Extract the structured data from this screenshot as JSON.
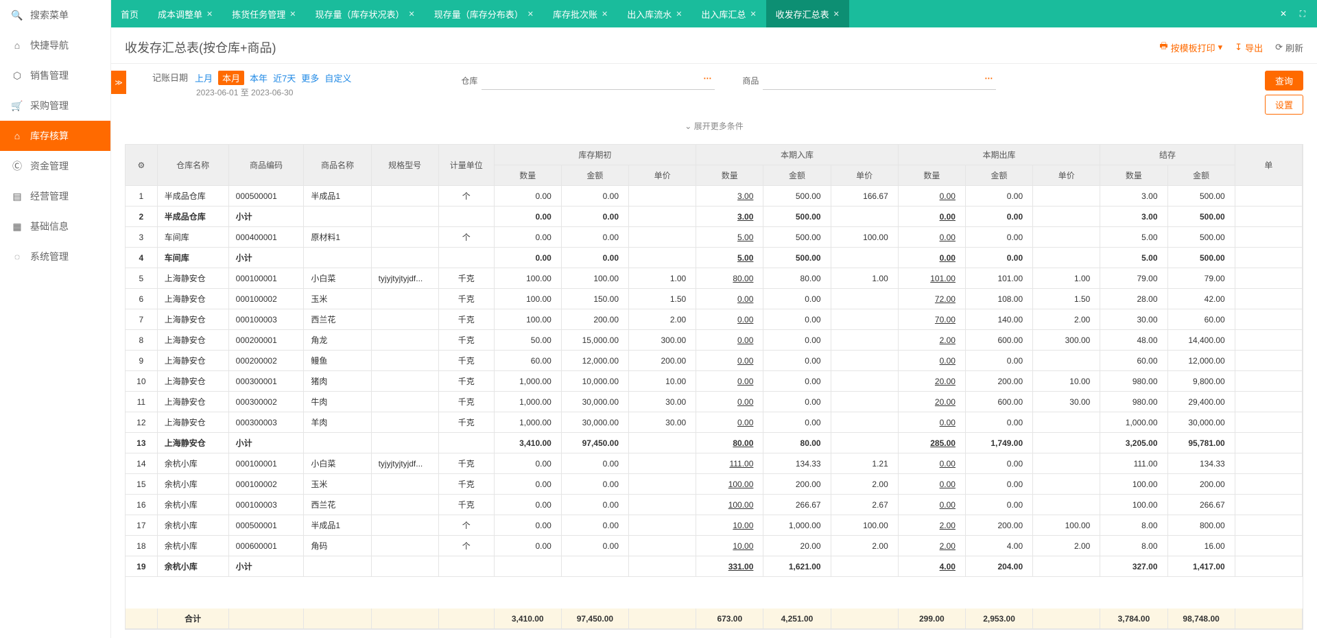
{
  "colors": {
    "accent": "#ff6a00",
    "tabbar": "#1abc9c",
    "tabactive": "#0d8f73",
    "footer_bg": "#fdf6e3"
  },
  "sidebar": [
    {
      "icon": "search",
      "label": "搜索菜单"
    },
    {
      "icon": "home",
      "label": "快捷导航"
    },
    {
      "icon": "sale",
      "label": "销售管理"
    },
    {
      "icon": "purchase",
      "label": "采购管理"
    },
    {
      "icon": "stock",
      "label": "库存核算",
      "active": true
    },
    {
      "icon": "money",
      "label": "资金管理"
    },
    {
      "icon": "biz",
      "label": "经营管理"
    },
    {
      "icon": "base",
      "label": "基础信息"
    },
    {
      "icon": "sys",
      "label": "系统管理"
    }
  ],
  "tabs": [
    {
      "label": "首页",
      "closable": false
    },
    {
      "label": "成本调整单",
      "closable": true
    },
    {
      "label": "拣货任务管理",
      "closable": true
    },
    {
      "label": "现存量（库存状况表）",
      "closable": true
    },
    {
      "label": "现存量（库存分布表）",
      "closable": true
    },
    {
      "label": "库存批次账",
      "closable": true
    },
    {
      "label": "出入库流水",
      "closable": true
    },
    {
      "label": "出入库汇总",
      "closable": true
    },
    {
      "label": "收发存汇总表",
      "closable": true,
      "active": true
    }
  ],
  "page": {
    "title": "收发存汇总表(按仓库+商品)",
    "actions": {
      "print": "按模板打印",
      "export": "导出",
      "refresh": "刷新"
    }
  },
  "filter": {
    "date_label": "记账日期",
    "ranges": [
      "上月",
      "本月",
      "本年",
      "近7天",
      "更多",
      "自定义"
    ],
    "range_active": 1,
    "date_text": "2023-06-01 至 2023-06-30",
    "warehouse_label": "仓库",
    "product_label": "商品",
    "query": "查询",
    "settings": "设置",
    "expand": "展开更多条件"
  },
  "grid": {
    "groups": [
      "库存期初",
      "本期入库",
      "本期出库",
      "结存"
    ],
    "sub_cols": [
      "数量",
      "金额",
      "单价"
    ],
    "fixed_cols": [
      "",
      "仓库名称",
      "商品编码",
      "商品名称",
      "规格型号",
      "计量单位"
    ],
    "last_col": "单",
    "rows": [
      {
        "i": 1,
        "wh": "半成品仓库",
        "code": "000500001",
        "name": "半成品1",
        "spec": "",
        "unit": "个",
        "q0": "0.00",
        "a0": "0.00",
        "p0": "",
        "qi": "3.00",
        "ai": "500.00",
        "pi": "166.67",
        "qo": "0.00",
        "ao": "0.00",
        "po": "",
        "qb": "3.00",
        "ab": "500.00"
      },
      {
        "i": 2,
        "wh": "半成品仓库",
        "code": "小计",
        "sub": true,
        "q0": "0.00",
        "a0": "0.00",
        "qi": "3.00",
        "ai": "500.00",
        "qo": "0.00",
        "ao": "0.00",
        "qb": "3.00",
        "ab": "500.00"
      },
      {
        "i": 3,
        "wh": "车间库",
        "code": "000400001",
        "name": "原材料1",
        "unit": "个",
        "q0": "0.00",
        "a0": "0.00",
        "qi": "5.00",
        "ai": "500.00",
        "pi": "100.00",
        "qo": "0.00",
        "ao": "0.00",
        "qb": "5.00",
        "ab": "500.00"
      },
      {
        "i": 4,
        "wh": "车间库",
        "code": "小计",
        "sub": true,
        "q0": "0.00",
        "a0": "0.00",
        "qi": "5.00",
        "ai": "500.00",
        "qo": "0.00",
        "ao": "0.00",
        "qb": "5.00",
        "ab": "500.00"
      },
      {
        "i": 5,
        "wh": "上海静安仓",
        "code": "000100001",
        "name": "小白菜",
        "spec": "tyjyjtyjtyjdf...",
        "unit": "千克",
        "q0": "100.00",
        "a0": "100.00",
        "p0": "1.00",
        "qi": "80.00",
        "ai": "80.00",
        "pi": "1.00",
        "qo": "101.00",
        "ao": "101.00",
        "po": "1.00",
        "qb": "79.00",
        "ab": "79.00"
      },
      {
        "i": 6,
        "wh": "上海静安仓",
        "code": "000100002",
        "name": "玉米",
        "unit": "千克",
        "q0": "100.00",
        "a0": "150.00",
        "p0": "1.50",
        "qi": "0.00",
        "ai": "0.00",
        "qo": "72.00",
        "ao": "108.00",
        "po": "1.50",
        "qb": "28.00",
        "ab": "42.00"
      },
      {
        "i": 7,
        "wh": "上海静安仓",
        "code": "000100003",
        "name": "西兰花",
        "unit": "千克",
        "q0": "100.00",
        "a0": "200.00",
        "p0": "2.00",
        "qi": "0.00",
        "ai": "0.00",
        "qo": "70.00",
        "ao": "140.00",
        "po": "2.00",
        "qb": "30.00",
        "ab": "60.00"
      },
      {
        "i": 8,
        "wh": "上海静安仓",
        "code": "000200001",
        "name": "角龙",
        "unit": "千克",
        "q0": "50.00",
        "a0": "15,000.00",
        "p0": "300.00",
        "qi": "0.00",
        "ai": "0.00",
        "qo": "2.00",
        "ao": "600.00",
        "po": "300.00",
        "qb": "48.00",
        "ab": "14,400.00"
      },
      {
        "i": 9,
        "wh": "上海静安仓",
        "code": "000200002",
        "name": "鳗鱼",
        "unit": "千克",
        "q0": "60.00",
        "a0": "12,000.00",
        "p0": "200.00",
        "qi": "0.00",
        "ai": "0.00",
        "qo": "0.00",
        "ao": "0.00",
        "qb": "60.00",
        "ab": "12,000.00"
      },
      {
        "i": 10,
        "wh": "上海静安仓",
        "code": "000300001",
        "name": "猪肉",
        "unit": "千克",
        "q0": "1,000.00",
        "a0": "10,000.00",
        "p0": "10.00",
        "qi": "0.00",
        "ai": "0.00",
        "qo": "20.00",
        "ao": "200.00",
        "po": "10.00",
        "qb": "980.00",
        "ab": "9,800.00"
      },
      {
        "i": 11,
        "wh": "上海静安仓",
        "code": "000300002",
        "name": "牛肉",
        "unit": "千克",
        "q0": "1,000.00",
        "a0": "30,000.00",
        "p0": "30.00",
        "qi": "0.00",
        "ai": "0.00",
        "qo": "20.00",
        "ao": "600.00",
        "po": "30.00",
        "qb": "980.00",
        "ab": "29,400.00"
      },
      {
        "i": 12,
        "wh": "上海静安仓",
        "code": "000300003",
        "name": "羊肉",
        "unit": "千克",
        "q0": "1,000.00",
        "a0": "30,000.00",
        "p0": "30.00",
        "qi": "0.00",
        "ai": "0.00",
        "qo": "0.00",
        "ao": "0.00",
        "qb": "1,000.00",
        "ab": "30,000.00"
      },
      {
        "i": 13,
        "wh": "上海静安仓",
        "code": "小计",
        "sub": true,
        "q0": "3,410.00",
        "a0": "97,450.00",
        "qi": "80.00",
        "ai": "80.00",
        "qo": "285.00",
        "ao": "1,749.00",
        "qb": "3,205.00",
        "ab": "95,781.00"
      },
      {
        "i": 14,
        "wh": "余杭小库",
        "code": "000100001",
        "name": "小白菜",
        "spec": "tyjyjtyjtyjdf...",
        "unit": "千克",
        "q0": "0.00",
        "a0": "0.00",
        "qi": "111.00",
        "ai": "134.33",
        "pi": "1.21",
        "qo": "0.00",
        "ao": "0.00",
        "qb": "111.00",
        "ab": "134.33"
      },
      {
        "i": 15,
        "wh": "余杭小库",
        "code": "000100002",
        "name": "玉米",
        "unit": "千克",
        "q0": "0.00",
        "a0": "0.00",
        "qi": "100.00",
        "ai": "200.00",
        "pi": "2.00",
        "qo": "0.00",
        "ao": "0.00",
        "qb": "100.00",
        "ab": "200.00"
      },
      {
        "i": 16,
        "wh": "余杭小库",
        "code": "000100003",
        "name": "西兰花",
        "unit": "千克",
        "q0": "0.00",
        "a0": "0.00",
        "qi": "100.00",
        "ai": "266.67",
        "pi": "2.67",
        "qo": "0.00",
        "ao": "0.00",
        "qb": "100.00",
        "ab": "266.67"
      },
      {
        "i": 17,
        "wh": "余杭小库",
        "code": "000500001",
        "name": "半成品1",
        "unit": "个",
        "q0": "0.00",
        "a0": "0.00",
        "qi": "10.00",
        "ai": "1,000.00",
        "pi": "100.00",
        "qo": "2.00",
        "ao": "200.00",
        "po": "100.00",
        "qb": "8.00",
        "ab": "800.00"
      },
      {
        "i": 18,
        "wh": "余杭小库",
        "code": "000600001",
        "name": "角码",
        "unit": "个",
        "q0": "0.00",
        "a0": "0.00",
        "qi": "10.00",
        "ai": "20.00",
        "pi": "2.00",
        "qo": "2.00",
        "ao": "4.00",
        "po": "2.00",
        "qb": "8.00",
        "ab": "16.00"
      },
      {
        "i": 19,
        "wh": "余杭小库",
        "code": "小计",
        "sub": true,
        "qi": "331.00",
        "ai": "1,621.00",
        "qo": "4.00",
        "ao": "204.00",
        "qb": "327.00",
        "ab": "1,417.00"
      }
    ],
    "total_label": "合计",
    "total": {
      "q0": "3,410.00",
      "a0": "97,450.00",
      "qi": "673.00",
      "ai": "4,251.00",
      "qo": "299.00",
      "ao": "2,953.00",
      "qb": "3,784.00",
      "ab": "98,748.00"
    }
  }
}
